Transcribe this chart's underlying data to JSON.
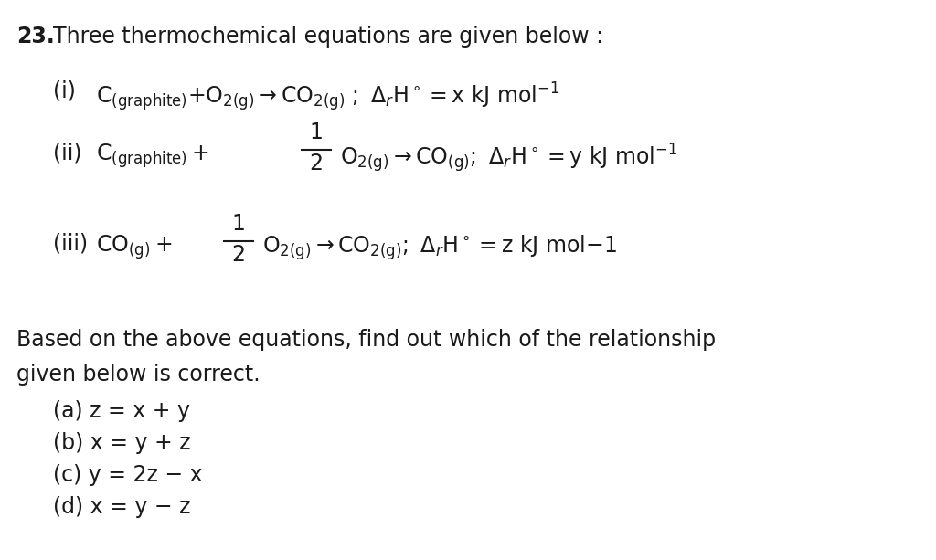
{
  "background_color": "#ffffff",
  "text_color": "#1a1a1a",
  "fig_width": 10.24,
  "fig_height": 6.13,
  "dpi": 100,
  "qnum": "23.",
  "qtitle": " Three thermochemical equations are given below :",
  "para1": "  Based on the above equations, find out which of the relationship",
  "para2": "given below is correct.",
  "opt_a": "(a) z = x + y",
  "opt_b": "(b) x = y + z",
  "opt_c": "(c) y = 2z − x",
  "opt_d": "(d) x = y − z",
  "font_size": 17,
  "font_size_small": 12,
  "font_family": "DejaVu Sans"
}
